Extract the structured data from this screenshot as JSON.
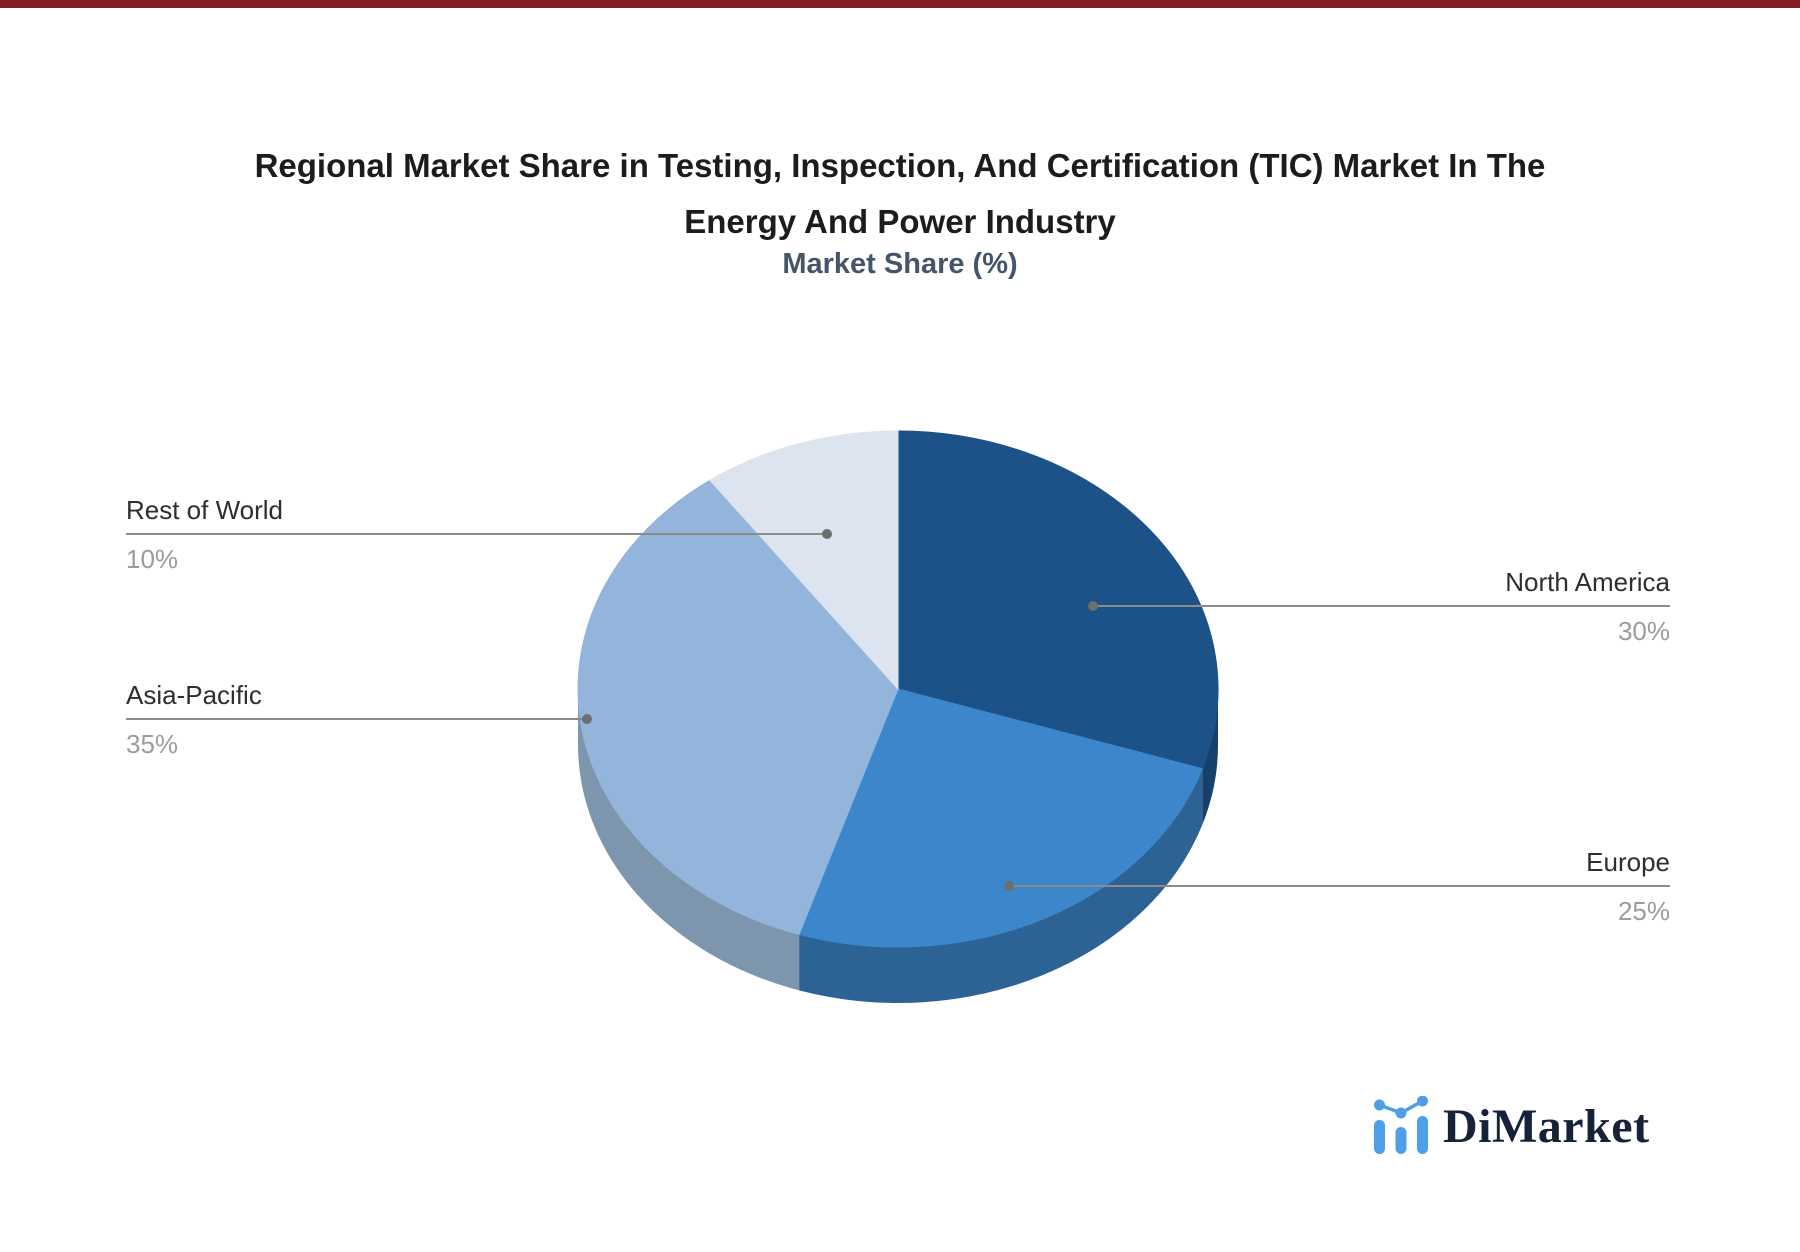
{
  "title": {
    "line1": "Regional Market Share in Testing, Inspection, And Certification (TIC) Market In The",
    "line2": "Energy And Power Industry"
  },
  "subtitle": "Market Share (%)",
  "chart_data": {
    "type": "pie",
    "style": "3d",
    "title": "Regional Market Share in Testing, Inspection, And Certification (TIC) Market In The Energy And Power Industry",
    "subtitle": "Market Share (%)",
    "unit": "%",
    "start_at": "top",
    "direction": "clockwise",
    "slices": [
      {
        "label": "North America",
        "value": 30,
        "color": "#1D5289",
        "side_color": "#17406B"
      },
      {
        "label": "Europe",
        "value": 25,
        "color": "#3C87CB",
        "side_color": "#2D6394"
      },
      {
        "label": "Asia-Pacific",
        "value": 35,
        "color": "#93B4DB",
        "side_color": "#7E95AE"
      },
      {
        "label": "Rest of World",
        "value": 10,
        "color": "#DCE4EF"
      }
    ],
    "legend": "callout-labels",
    "grid": false
  },
  "colors": {
    "top_accent_bar": "#811f24",
    "callout_line": "#8c8c8c",
    "callout_dot": "#6e6e6e",
    "label_text": "#2e2e2e",
    "percent_text": "#9c9c9c",
    "subtitle_text": "#44546A",
    "logo_icon_blue": "#4D9FE8",
    "logo_text_navy": "#152238"
  },
  "logo": {
    "icon": "bar-line-chart-icon",
    "text": "DiMarket"
  }
}
